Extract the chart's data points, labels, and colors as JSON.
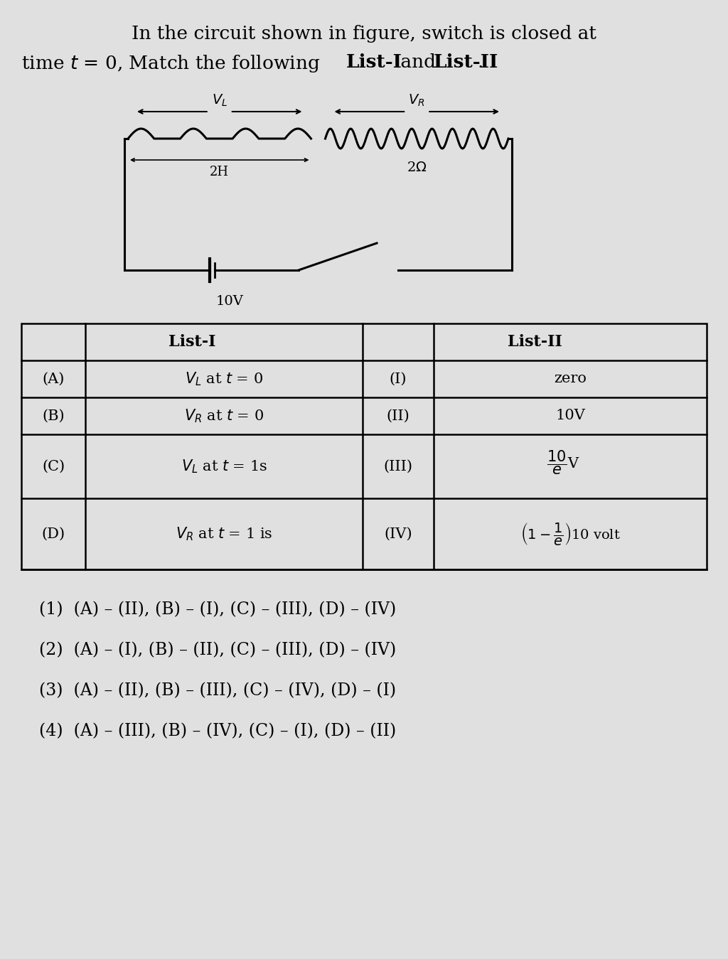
{
  "bg_color": "#e0e0e0",
  "title_fontsize": 19,
  "circuit_lw": 2.2,
  "table_header_left": "List-I",
  "table_header_right": "List-II",
  "list1_items": [
    [
      "(A)",
      "$V_L$ at $t$ = 0"
    ],
    [
      "(B)",
      "$V_R$ at $t$ = 0"
    ],
    [
      "(C)",
      "$V_L$ at $t$ = 1s"
    ],
    [
      "(D)",
      "$V_R$ at $t$ = 1 is"
    ]
  ],
  "list2_items": [
    [
      "(I)",
      "zero"
    ],
    [
      "(II)",
      "10V"
    ],
    [
      "(III)",
      "$\\dfrac{10}{e}$V"
    ],
    [
      "(IV)",
      "$\\left(1-\\dfrac{1}{e}\\right)$10 volt"
    ]
  ],
  "options": [
    "(1)  (A) – (II), (B) – (I), (C) – (III), (D) – (IV)",
    "(2)  (A) – (I), (B) – (II), (C) – (III), (D) – (IV)",
    "(3)  (A) – (II), (B) – (III), (C) – (IV), (D) – (I)",
    "(4)  (A) – (III), (B) – (IV), (C) – (I), (D) – (II)"
  ],
  "options_fontsize": 17
}
